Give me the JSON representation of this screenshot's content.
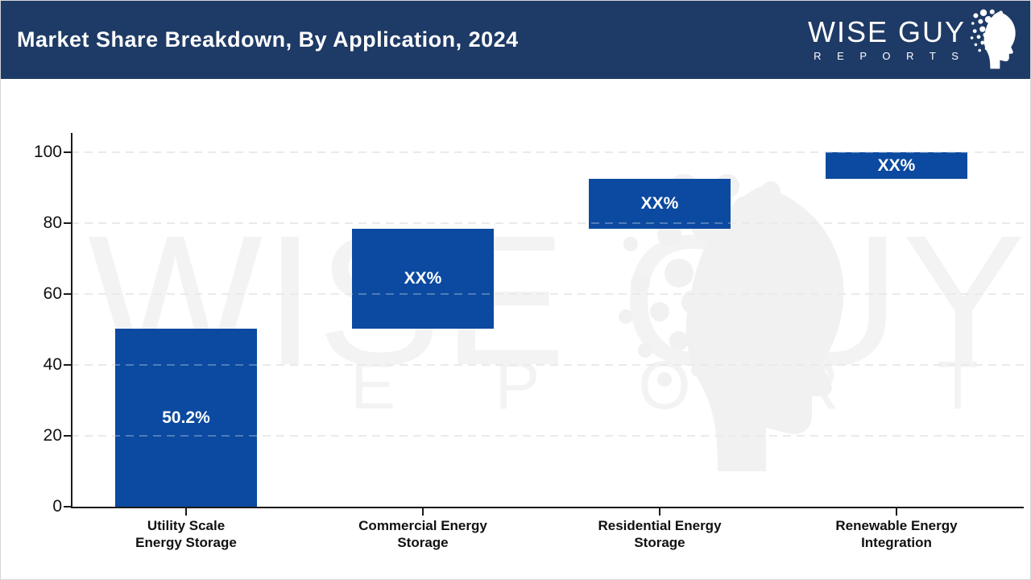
{
  "header": {
    "title": "Market Share Breakdown, By Application, 2024",
    "logo": {
      "name": "WISE GUY",
      "subtext": "R E P O R T S"
    }
  },
  "watermark": {
    "name": "WISE GUY",
    "subtext": "R E P O R T S"
  },
  "chart_data": {
    "type": "bar",
    "subtype": "waterfall",
    "title": "Market Share Breakdown, By Application, 2024",
    "categories": [
      "Utility Scale\nEnergy Storage",
      "Commercial Energy\nStorage",
      "Residential Energy\nStorage",
      "Renewable Energy\nIntegration"
    ],
    "segments": [
      {
        "category": "Utility Scale Energy Storage",
        "start": 0,
        "end": 50.2,
        "label": "50.2%"
      },
      {
        "category": "Commercial Energy Storage",
        "start": 50.2,
        "end": 78.5,
        "label": "XX%"
      },
      {
        "category": "Residential Energy Storage",
        "start": 78.5,
        "end": 92.5,
        "label": "XX%"
      },
      {
        "category": "Renewable Energy Integration",
        "start": 92.5,
        "end": 100,
        "label": "XX%"
      }
    ],
    "y_ticks": [
      0,
      20,
      40,
      60,
      80,
      100
    ],
    "ylim": [
      0,
      105
    ],
    "xlabel": "",
    "ylabel": "",
    "grid": "dashed horizontal",
    "legend": "none",
    "bar_labels_inside": true
  },
  "colors": {
    "header_bg": "#1e3a66",
    "bar": "#0b4aa0",
    "bar_label": "#ffffff",
    "grid": "#e2e2e2",
    "axis": "#1a1a1a",
    "text": "#111111",
    "watermark": "#f3f3f3",
    "page_border": "#d6d6d6"
  }
}
